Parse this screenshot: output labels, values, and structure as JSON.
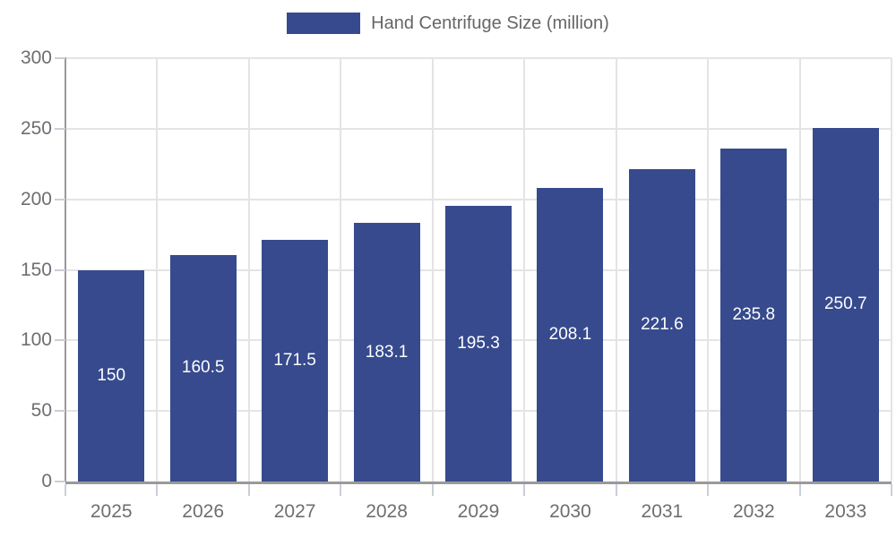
{
  "chart_data": {
    "type": "bar",
    "title": "Hand Centrifuge Size (million)",
    "legend": [
      "Hand Centrifuge Size (million)"
    ],
    "legend_position": "top",
    "categories": [
      "2025",
      "2026",
      "2027",
      "2028",
      "2029",
      "2030",
      "2031",
      "2032",
      "2033"
    ],
    "values": [
      150,
      160.5,
      171.5,
      183.1,
      195.3,
      208.1,
      221.6,
      235.8,
      250.7
    ],
    "value_labels": [
      "150",
      "160.5",
      "171.5",
      "183.1",
      "195.3",
      "208.1",
      "221.6",
      "235.8",
      "250.7"
    ],
    "xlabel": "",
    "ylabel": "",
    "ylim": [
      0,
      300
    ],
    "y_ticks": [
      0,
      50,
      100,
      150,
      200,
      250,
      300
    ],
    "grid": true
  },
  "colors": {
    "bar": "#364A8D",
    "bar_value_text": "#ffffff",
    "axis_line": "#999999",
    "tick_mark": "#c9ced9",
    "grid_line": "#e4e4e4",
    "axis_text": "#6e6e6e",
    "legend_text": "#666666",
    "background": "#ffffff"
  }
}
